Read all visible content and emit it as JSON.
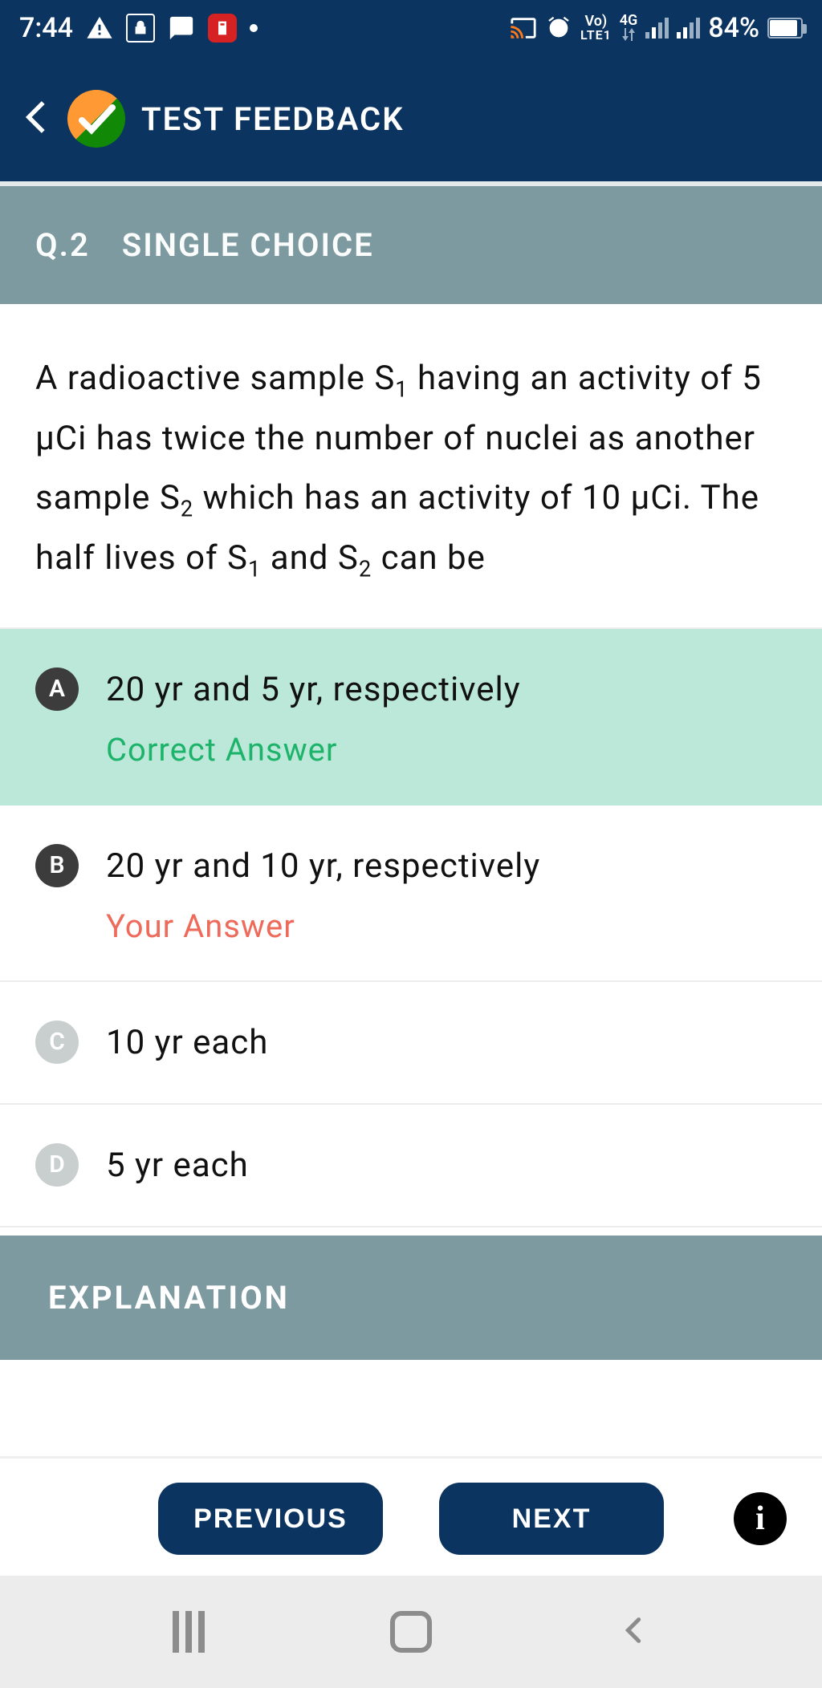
{
  "status": {
    "time": "7:44",
    "battery_pct": "84%",
    "battery_fill_pct": 84,
    "vo_top": "Vo)",
    "vo_bot": "LTE1",
    "net_label": "4G"
  },
  "header": {
    "title": "TEST FEEDBACK"
  },
  "question": {
    "number": "Q.2",
    "type": "SINGLE CHOICE",
    "text_html": "A radioactive sample S<sub>1</sub> having an activity of 5 µCi has twice the number of nuclei as another sample S<sub>2</sub> which has an activity of 10 µCi. The half lives of S<sub>1</sub> and S<sub>2</sub> can be"
  },
  "options": [
    {
      "letter": "A",
      "text": "20 yr and 5 yr, respectively",
      "tag": "Correct Answer",
      "tag_kind": "green",
      "is_correct": true,
      "dim": false
    },
    {
      "letter": "B",
      "text": "20 yr and 10 yr, respectively",
      "tag": "Your Answer",
      "tag_kind": "red",
      "is_correct": false,
      "dim": false
    },
    {
      "letter": "C",
      "text": "10 yr each",
      "tag": "",
      "tag_kind": "",
      "is_correct": false,
      "dim": true
    },
    {
      "letter": "D",
      "text": "5 yr each",
      "tag": "",
      "tag_kind": "",
      "is_correct": false,
      "dim": true
    }
  ],
  "explanation_label": "EXPLANATION",
  "nav": {
    "prev": "PREVIOUS",
    "next": "NEXT"
  },
  "colors": {
    "brand_navy": "#0b3460",
    "header_slate": "#7e9aa1",
    "correct_bg": "#bce8d9",
    "correct_text": "#1db36a",
    "wrong_text": "#ee6a5b",
    "badge_dark": "#3c3c3c",
    "badge_dim": "#c9cfcf",
    "android_nav_bg": "#ececec",
    "android_nav_fg": "#8c8c8c"
  }
}
